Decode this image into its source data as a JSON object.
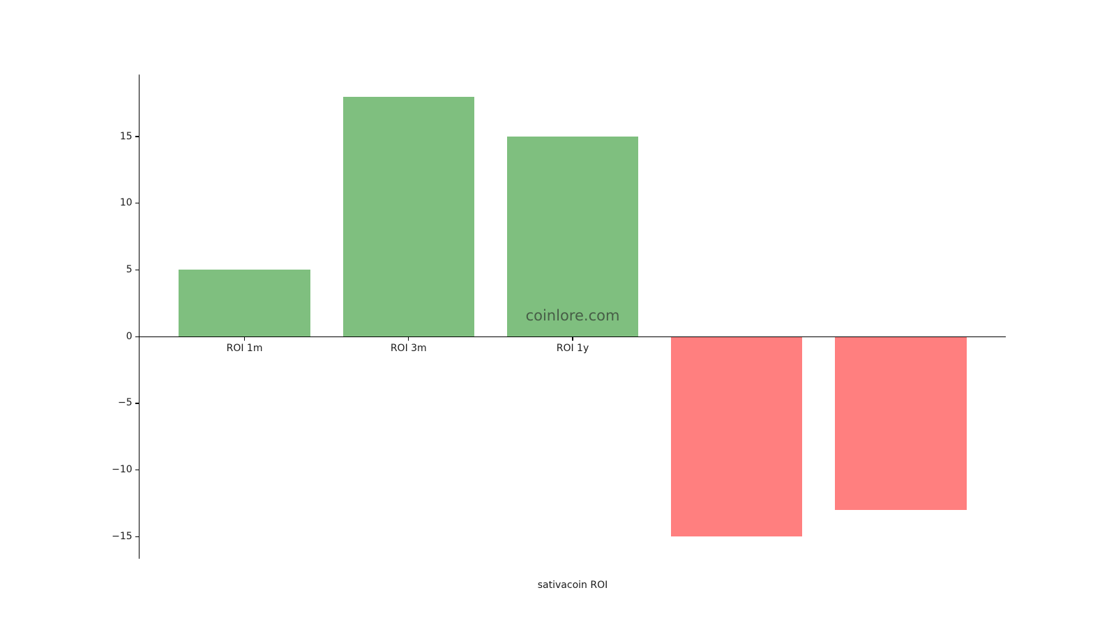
{
  "watermark": {
    "text": "coinlore.com"
  },
  "chart_data": {
    "type": "bar",
    "title": "",
    "xlabel": "sativacoin ROI",
    "ylabel": "",
    "categories": [
      "ROI 1m",
      "ROI 3m",
      "ROI 1y",
      "",
      ""
    ],
    "values": [
      5,
      18,
      15,
      -15,
      -13
    ],
    "bar_colors": [
      "#7fbf7f",
      "#7fbf7f",
      "#7fbf7f",
      "#ff7f7f",
      "#ff7f7f"
    ],
    "ytick_values": [
      15,
      10,
      5,
      0,
      -5,
      -10,
      -15
    ],
    "ytick_labels": [
      "15",
      "10",
      "5",
      "0",
      "−5",
      "−10",
      "−15"
    ],
    "ylim": [
      -16.65,
      19.65
    ],
    "xlim": [
      -0.64,
      4.64
    ],
    "bar_width_units": 0.8,
    "grid": false,
    "legend": false,
    "colors": {
      "positive": "#7fbf7f",
      "negative": "#ff7f7f",
      "axis": "#000000",
      "tick_text": "#1a1a1a",
      "watermark": "rgba(40,40,40,0.65)"
    }
  }
}
